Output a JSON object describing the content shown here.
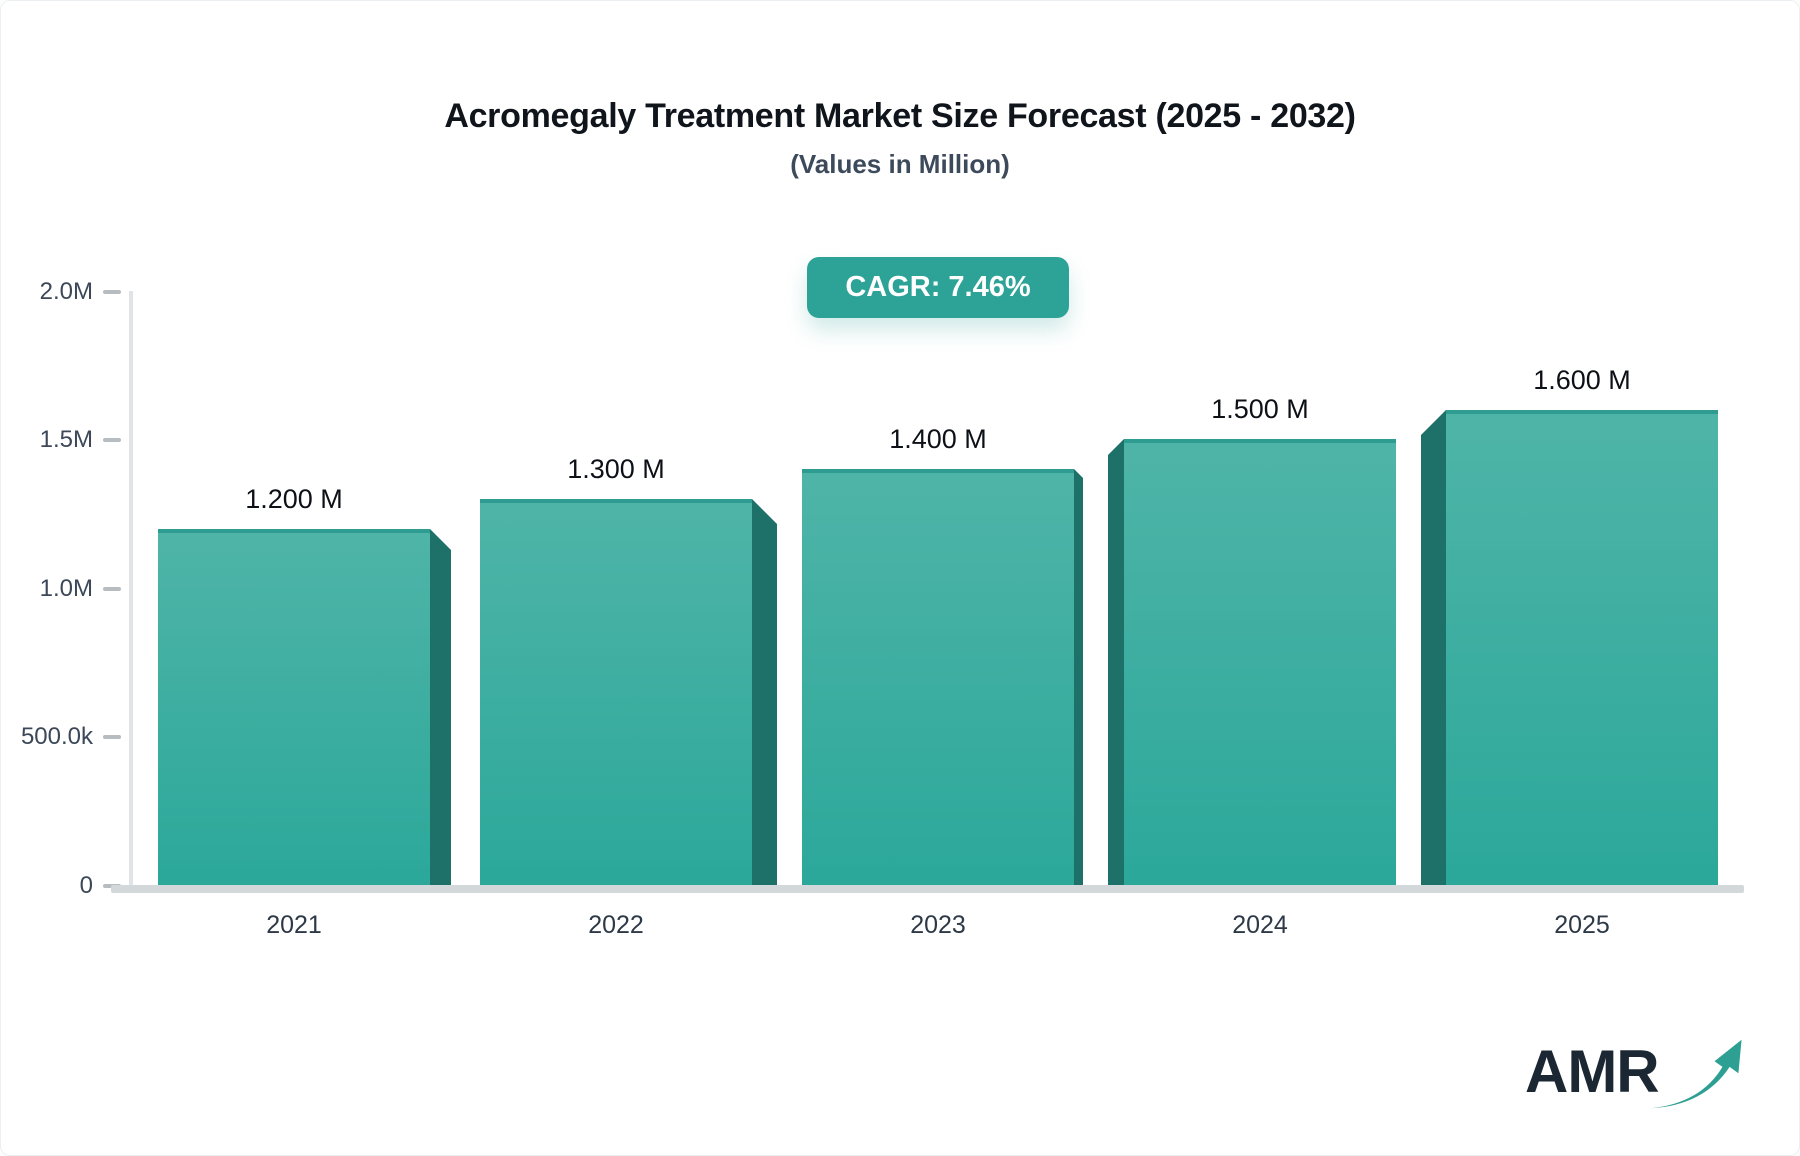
{
  "header": {
    "title": "Acromegaly Treatment Market Size Forecast (2025 - 2032)",
    "subtitle": "(Values in Million)"
  },
  "badge": {
    "label": "CAGR: 7.46%",
    "background": "#2DA397",
    "text_color": "#FFFFFF"
  },
  "chart_data": {
    "type": "bar",
    "title": "Acromegaly Treatment Market Size Forecast (2025 - 2032)",
    "subtitle": "(Values in Million)",
    "categories": [
      "2021",
      "2022",
      "2023",
      "2024",
      "2025"
    ],
    "values": [
      1200000,
      1300000,
      1400000,
      1500000,
      1600000
    ],
    "value_labels": [
      "1.200 M",
      "1.300 M",
      "1.400 M",
      "1.500 M",
      "1.600 M"
    ],
    "xlabel": "",
    "ylabel": "",
    "ylim": [
      0,
      2000000
    ],
    "ytick_values": [
      2000000,
      1500000,
      1000000,
      500000,
      0
    ],
    "ytick_labels": [
      "2.0M",
      "1.5M",
      "1.0M",
      "500.0k",
      "0"
    ],
    "grid": false,
    "legend": false,
    "bar_color_top": "#4FB4A8",
    "bar_color_bottom": "#2BA89A",
    "bar_top_edge_color": "#2E9C90",
    "bar_side_color": "#1E7168",
    "extrude_side": [
      "right",
      "right",
      "right",
      "left",
      "left"
    ],
    "extrude_width": [
      21,
      25,
      9,
      16,
      25
    ]
  },
  "logo": {
    "text": "AMR",
    "text_color": "#1B2733",
    "arrow_color": "#2EA093",
    "arrow_icon": "growth-arrow"
  }
}
